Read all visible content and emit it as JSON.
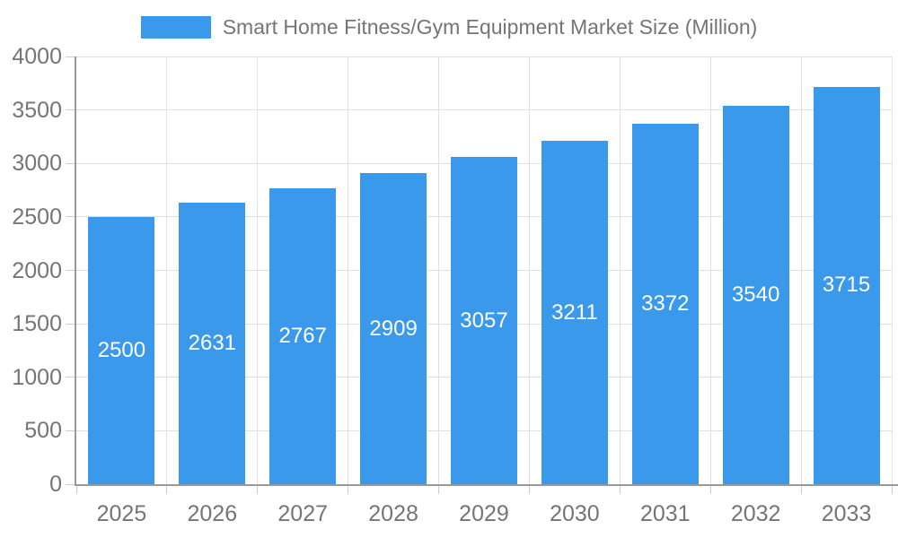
{
  "chart_data": {
    "type": "bar",
    "title": "Smart Home Fitness/Gym Equipment Market Size (Million)",
    "legend": {
      "position": "top",
      "entries": [
        "Smart Home Fitness/Gym Equipment Market Size (Million)"
      ]
    },
    "categories": [
      "2025",
      "2026",
      "2027",
      "2028",
      "2029",
      "2030",
      "2031",
      "2032",
      "2033"
    ],
    "values": [
      2500,
      2631,
      2767,
      2909,
      3057,
      3211,
      3372,
      3540,
      3715
    ],
    "value_labels_position": "inside-center",
    "xlabel": "",
    "ylabel": "",
    "ylim": [
      0,
      4000
    ],
    "yticks": [
      0,
      500,
      1000,
      1500,
      2000,
      2500,
      3000,
      3500,
      4000
    ],
    "grid": true,
    "colors": {
      "bar": "#3B99EC",
      "grid": "#E0E0E0",
      "tick": "#CCCCCC",
      "axis": "#999999",
      "text": "#757575",
      "value_label": "#FFFFFF",
      "background": "#FFFFFF"
    }
  }
}
